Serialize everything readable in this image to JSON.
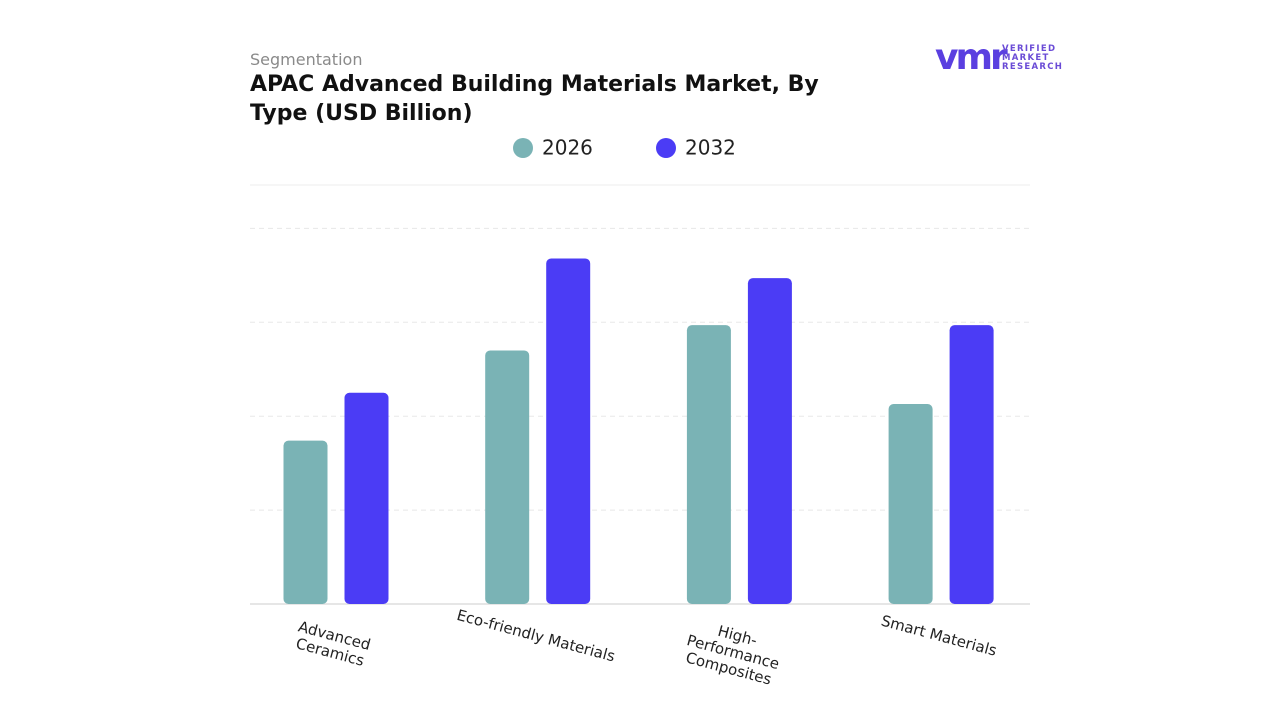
{
  "brand": [
    "VERIFIED",
    "MARKET",
    "RESEARCH"
  ],
  "chart_data": {
    "type": "bar",
    "subtitle": "Segmentation",
    "title": "APAC Advanced Building Materials Market, By Type (USD Billion)",
    "categories": [
      "Advanced Ceramics",
      "Eco-friendly Materials",
      "High-Performance Composites",
      "Smart Materials"
    ],
    "series": [
      {
        "name": "2026",
        "color": "#7ab3b5",
        "values": [
          17.4,
          27.0,
          29.7,
          21.3
        ]
      },
      {
        "name": "2032",
        "color": "#4b3cf5",
        "values": [
          22.5,
          36.8,
          34.7,
          29.7
        ]
      }
    ],
    "ylim": [
      0,
      45
    ],
    "yticks": [
      0,
      10,
      20,
      30,
      40
    ],
    "grid": true
  }
}
